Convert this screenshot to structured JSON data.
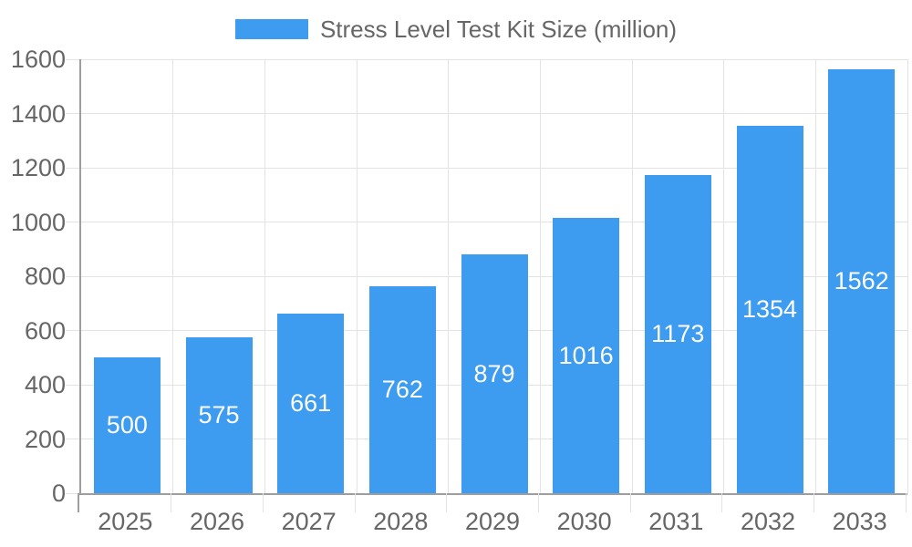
{
  "legend": {
    "label": "Stress Level Test Kit Size (million)"
  },
  "colors": {
    "bar": "#3D9BF0",
    "grid": "#E3E3E3",
    "axis": "#9E9E9E",
    "text": "#666666",
    "value_label": "#FFFFFF",
    "background": "#FFFFFF"
  },
  "chart_data": {
    "type": "bar",
    "title": "Stress Level Test Kit Size (million)",
    "categories": [
      "2025",
      "2026",
      "2027",
      "2028",
      "2029",
      "2030",
      "2031",
      "2032",
      "2033"
    ],
    "values": [
      500,
      575,
      661,
      762,
      879,
      1016,
      1173,
      1354,
      1562
    ],
    "series": [
      {
        "name": "Stress Level Test Kit Size (million)",
        "values": [
          500,
          575,
          661,
          762,
          879,
          1016,
          1173,
          1354,
          1562
        ]
      }
    ],
    "xlabel": "",
    "ylabel": "",
    "ylim": [
      0,
      1600
    ],
    "yticks": [
      0,
      200,
      400,
      600,
      800,
      1000,
      1200,
      1400,
      1600
    ],
    "grid": true,
    "bar_labels_inside": true,
    "legend_position": "top-center"
  }
}
